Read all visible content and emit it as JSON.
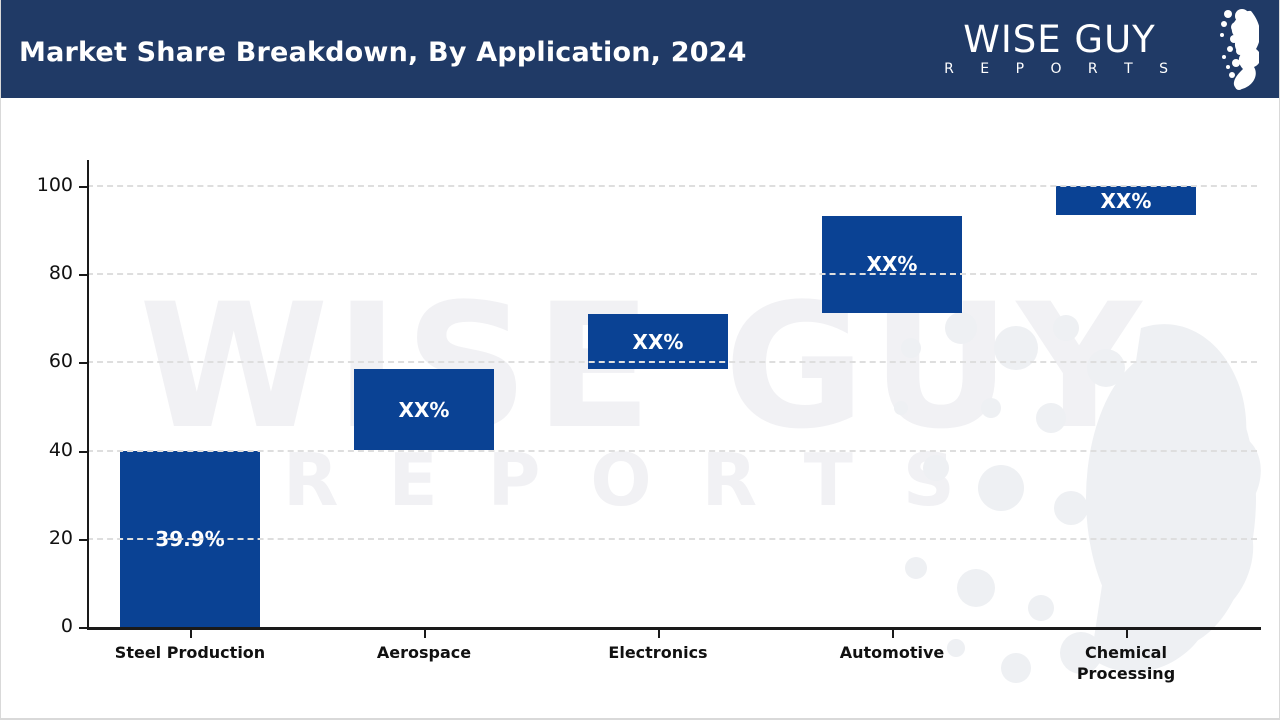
{
  "header": {
    "title": "Market Share Breakdown, By Application, 2024",
    "bg_color": "#203a66",
    "logo": {
      "line1": "WISE GUY",
      "line2": "R E P O R T S"
    }
  },
  "watermark": {
    "line1": "WISE GUY",
    "line2": "REPORTS"
  },
  "chart_data": {
    "type": "bar",
    "subtype": "waterfall",
    "title": "Market Share Breakdown, By Application, 2024",
    "categories": [
      "Steel Production",
      "Aerospace",
      "Electronics",
      "Automotive",
      "Chemical Processing"
    ],
    "bars": [
      {
        "category": "Steel Production",
        "start": 0,
        "end": 39.9,
        "label": "39.9%"
      },
      {
        "category": "Aerospace",
        "start": 40.2,
        "end": 58.4,
        "label": "XX%"
      },
      {
        "category": "Electronics",
        "start": 58.5,
        "end": 70.9,
        "label": "XX%"
      },
      {
        "category": "Automotive",
        "start": 71.1,
        "end": 93.3,
        "label": "XX%"
      },
      {
        "category": "Chemical Processing",
        "start": 93.4,
        "end": 99.9,
        "label": "XX%"
      }
    ],
    "y_ticks": [
      0,
      20,
      40,
      60,
      80,
      100
    ],
    "ylim": [
      0,
      105
    ],
    "xlabel": "",
    "ylabel": "",
    "grid": true,
    "grid_style": "dashed",
    "legend": false,
    "bar_color": "#0a4294",
    "label_color": "#ffffff",
    "axis_color": "#1a1a1a"
  }
}
